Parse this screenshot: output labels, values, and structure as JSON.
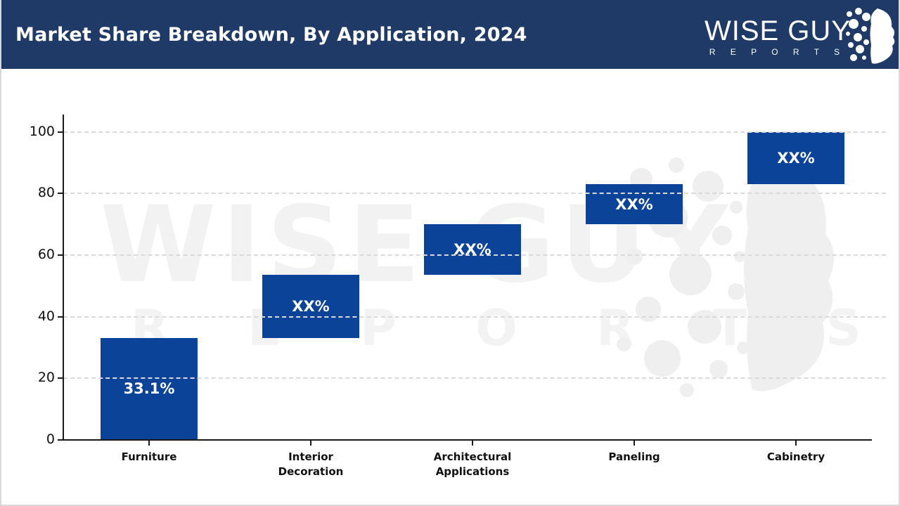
{
  "header": {
    "title": "Market Share Breakdown, By Application, 2024",
    "logo": {
      "line1": "WISE GUY",
      "line2": "R E P O R T S"
    }
  },
  "watermark": {
    "line1": "WISE GUY",
    "line2": "R E P O R T S"
  },
  "chart_data": {
    "type": "bar",
    "subtype": "waterfall",
    "title": "Market Share Breakdown, By Application, 2024",
    "xlabel": "",
    "ylabel": "",
    "ylim": [
      0,
      105
    ],
    "yticks": [
      0,
      20,
      40,
      60,
      80,
      100
    ],
    "grid": "horizontal-dashed",
    "legend": "none",
    "categories": [
      "Furniture",
      "Interior Decoration",
      "Architectural Applications",
      "Paneling",
      "Cabinetry"
    ],
    "segments": [
      {
        "category": "Furniture",
        "category_lines": [
          "Furniture"
        ],
        "start": 0,
        "end": 33.1,
        "label": "33.1%"
      },
      {
        "category": "Interior Decoration",
        "category_lines": [
          "Interior",
          "Decoration"
        ],
        "start": 33.1,
        "end": 53.5,
        "label": "XX%"
      },
      {
        "category": "Architectural Applications",
        "category_lines": [
          "Architectural",
          "Applications"
        ],
        "start": 53.5,
        "end": 70.0,
        "label": "XX%"
      },
      {
        "category": "Paneling",
        "category_lines": [
          "Paneling"
        ],
        "start": 70.0,
        "end": 83.0,
        "label": "XX%"
      },
      {
        "category": "Cabinetry",
        "category_lines": [
          "Cabinetry"
        ],
        "start": 83.0,
        "end": 100.0,
        "label": "XX%"
      }
    ],
    "colors": {
      "bar": "#0a4397",
      "bar_label": "#ffffff",
      "header_bg": "#1f3a66",
      "axis": "#1a1a1a",
      "gridline": "#dadada",
      "watermark": "#f2f2f2",
      "frame_border": "#d9d9d9"
    }
  }
}
